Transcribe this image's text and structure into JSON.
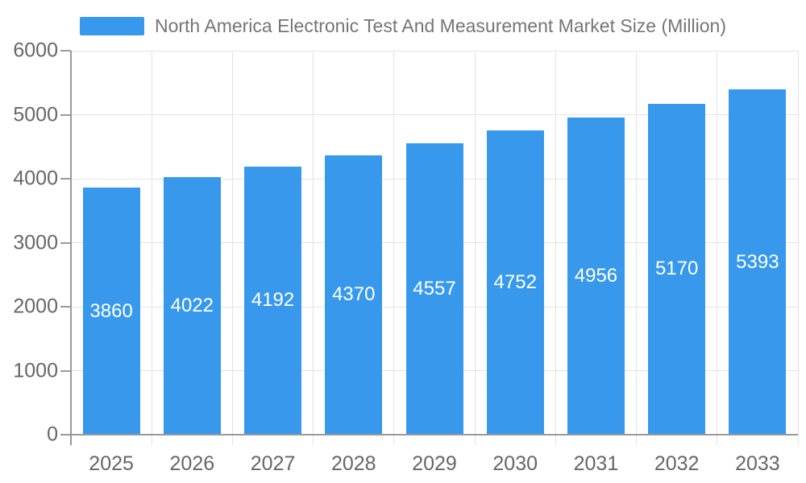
{
  "chart_data": {
    "type": "bar",
    "title": "North America Electronic Test And Measurement Market Size (Million)",
    "legend": "North America Electronic Test And Measurement Market Size (Million)",
    "legend_position": "top",
    "categories": [
      "2025",
      "2026",
      "2027",
      "2028",
      "2029",
      "2030",
      "2031",
      "2032",
      "2033"
    ],
    "values": [
      3860,
      4022,
      4192,
      4370,
      4557,
      4752,
      4956,
      5170,
      5393
    ],
    "xlabel": "",
    "ylabel": "",
    "ylim": [
      0,
      6000
    ],
    "ytick_interval": 1000,
    "yticks": [
      0,
      1000,
      2000,
      3000,
      4000,
      5000,
      6000
    ],
    "grid": true,
    "value_labels_inside_bars": true,
    "colors": {
      "bar": "#3899EC",
      "bar_label_text": "#ffffff",
      "axis_label_text": "#666666",
      "legend_text": "#757575",
      "axis_line": "#999999",
      "grid_line": "#e3e3e3",
      "background": "#ffffff"
    }
  }
}
